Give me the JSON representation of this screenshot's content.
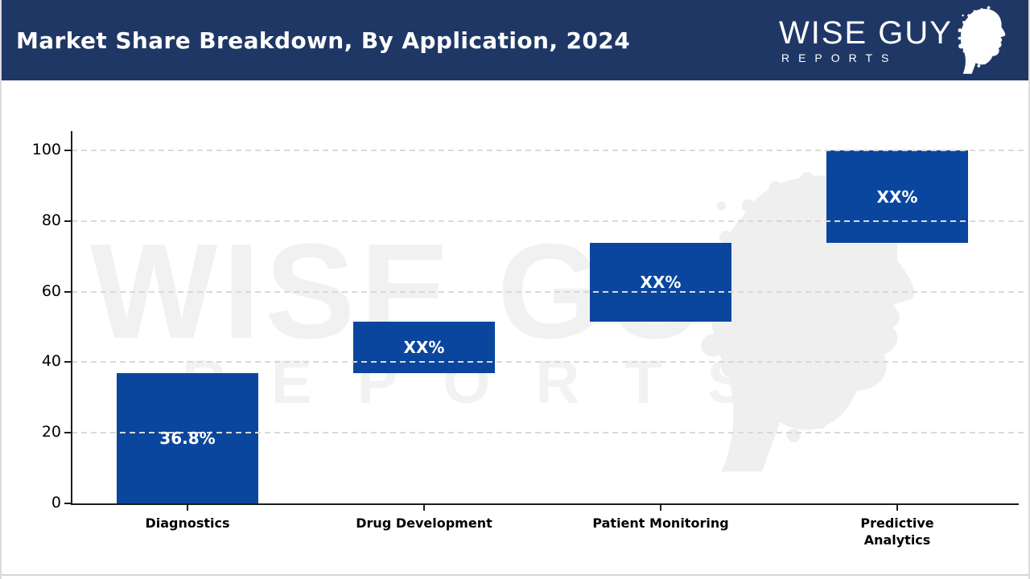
{
  "header": {
    "title": "Market Share Breakdown, By Application, 2024",
    "logo_text": "WISE GUY",
    "logo_subtext": "REPORTS"
  },
  "watermark": {
    "text": "WISE GUY",
    "subtext": "REPORTS"
  },
  "colors": {
    "header_bg": "#1f3765",
    "bar": "#0a469d",
    "grid": "#d9d9d9",
    "axis": "#1c1c1c",
    "value_label": "#ffffff",
    "watermark": "#f1f1f1"
  },
  "chart_data": {
    "type": "bar",
    "subtype": "waterfall",
    "title": "Market Share Breakdown, By Application, 2024",
    "xlabel": "",
    "ylabel": "",
    "categories": [
      "Diagnostics",
      "Drug Development",
      "Patient Monitoring",
      "Predictive Analytics"
    ],
    "category_label_lines": [
      [
        "Diagnostics"
      ],
      [
        "Drug Development"
      ],
      [
        "Patient Monitoring"
      ],
      [
        "Predictive",
        "Analytics"
      ]
    ],
    "segments": [
      {
        "category": "Diagnostics",
        "start": 0,
        "end": 36.8,
        "label": "36.8%"
      },
      {
        "category": "Drug Development",
        "start": 36.8,
        "end": 51.5,
        "label": "XX%"
      },
      {
        "category": "Patient Monitoring",
        "start": 51.5,
        "end": 73.7,
        "label": "XX%"
      },
      {
        "category": "Predictive Analytics",
        "start": 73.7,
        "end": 100,
        "label": "XX%"
      }
    ],
    "yticks": [
      0,
      20,
      40,
      60,
      80,
      100
    ],
    "ylim": [
      0,
      105
    ],
    "grid": "horizontal-dashed",
    "legend": "none"
  }
}
